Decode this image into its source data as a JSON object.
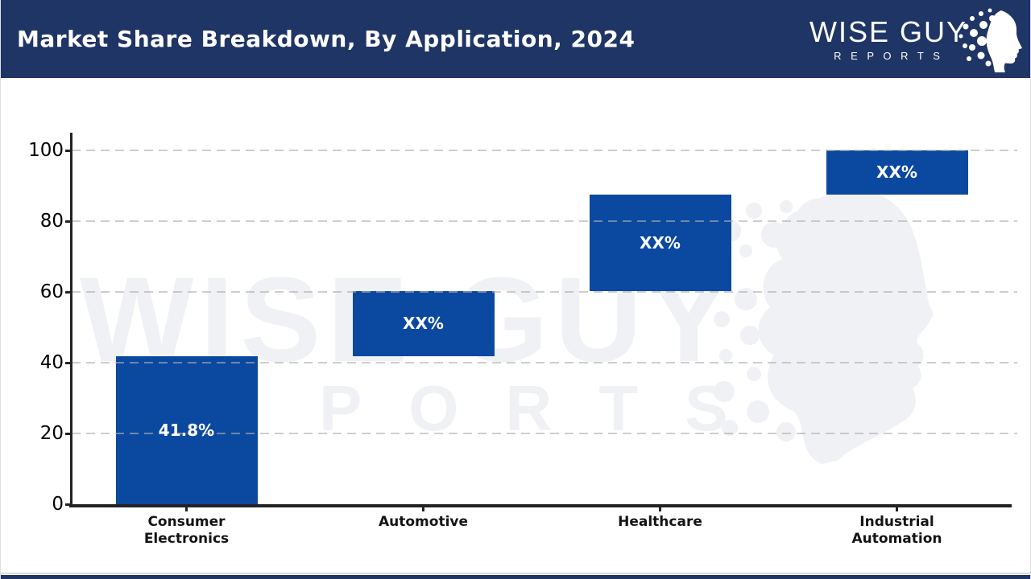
{
  "header": {
    "title": "Market Share Breakdown, By Application, 2024",
    "logo": {
      "wordmark": "WISE GUY",
      "subtext": "R E P O R T S"
    }
  },
  "watermark": {
    "line1": "WISE GUY",
    "line2": "PORTS"
  },
  "chart_data": {
    "type": "bar",
    "subtype": "waterfall",
    "title": "Market Share Breakdown, By Application, 2024",
    "categories": [
      [
        "Consumer",
        "Electronics"
      ],
      [
        "Automotive"
      ],
      [
        "Healthcare"
      ],
      [
        "Industrial",
        "Automation"
      ]
    ],
    "segments": [
      {
        "name": "Consumer Electronics",
        "start": 0,
        "end": 41.8,
        "label": "41.8%"
      },
      {
        "name": "Automotive",
        "start": 41.8,
        "end": 60.3,
        "label": "XX%"
      },
      {
        "name": "Healthcare",
        "start": 60.3,
        "end": 87.6,
        "label": "XX%"
      },
      {
        "name": "Industrial Automation",
        "start": 87.6,
        "end": 100,
        "label": "XX%"
      }
    ],
    "yticks": [
      0,
      20,
      40,
      60,
      80,
      100
    ],
    "ylim": [
      0,
      105
    ],
    "xlabel": "",
    "ylabel": "",
    "grid": "horizontal-dashed",
    "legend": null,
    "colors": {
      "bar": "#0b48a0",
      "bar_label": "#ffffff",
      "axis": "#232323",
      "gridline": "#c9c9c9",
      "header_bg": "#1f3565",
      "watermark": "#f0f1f4"
    }
  }
}
